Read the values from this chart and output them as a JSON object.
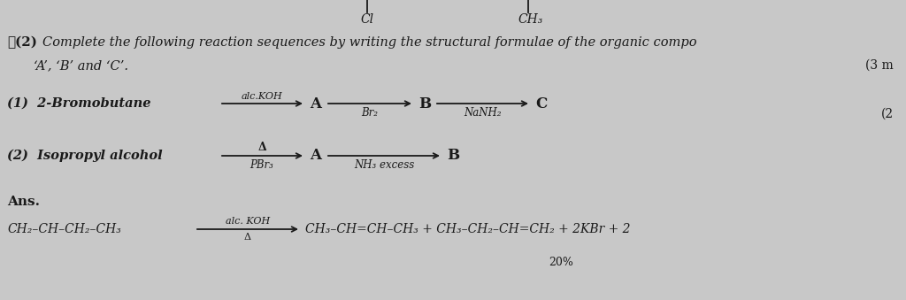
{
  "bg_color": "#c8c8c8",
  "text_color": "#1a1a1a",
  "title_star": "★(2)",
  "title_rest": " Complete the following reaction sequences by writing the structural formulae of the organic compo",
  "title_line2": "‘A’, ‘B’ and ‘C’.",
  "score_hint": "(3 m",
  "score_hint2": "(2",
  "top_cl_label": "Cl",
  "top_ch3_label": "CH₃",
  "rxn1_label": "(1)  2-Bromobutane",
  "rxn1_above1": "alc.KOH",
  "rxn1_below2": "Br₂",
  "rxn1_below3": "NaNH₂",
  "rxn2_label": "(2)  Isopropyl alcohol",
  "rxn2_above1": "Δ",
  "rxn2_below1": "PBr₃",
  "rxn2_below2": "NH₃ excess",
  "ans_label": "Ans.",
  "ans_line": "CH₂–CH–CH₂–CH₃",
  "ans_above_arrow": "alc. KOH",
  "ans_below_arrow": "Δ",
  "ans_result": "CH₃–CH=CH–CH₃ + CH₃–CH₂–CH=CH₂ + 2KBr + 2",
  "ans_percent": "20%"
}
